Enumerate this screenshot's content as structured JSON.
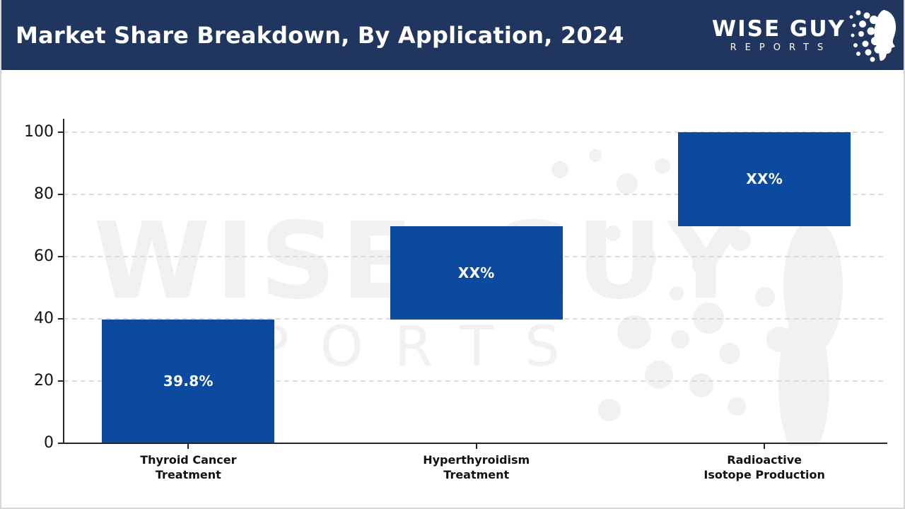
{
  "header": {
    "title": "Market Share Breakdown, By Application, 2024",
    "bg_color": "#21365f",
    "logo": {
      "line1": "WISE GUY",
      "line2": "REPORTS"
    }
  },
  "watermark": {
    "line1": "WISE GUY",
    "line2": "REPORTS",
    "color": "#f1f1f1"
  },
  "chart_data": {
    "type": "bar",
    "subtype": "waterfall-segments",
    "title": "Market Share Breakdown, By Application, 2024",
    "xlabel": "",
    "ylabel": "",
    "categories": [
      [
        "Thyroid Cancer",
        "Treatment"
      ],
      [
        "Hyperthyroidism",
        "Treatment"
      ],
      [
        "Radioactive",
        "Isotope Production"
      ]
    ],
    "segments": [
      {
        "from": 0,
        "to": 39.8,
        "label": "39.8%"
      },
      {
        "from": 39.8,
        "to": 69.8,
        "label": "XX%"
      },
      {
        "from": 69.8,
        "to": 100,
        "label": "XX%"
      }
    ],
    "ytick_labels": [
      "0",
      "20",
      "40",
      "60",
      "80",
      "100"
    ],
    "yticks": [
      0,
      20,
      40,
      60,
      80,
      100
    ],
    "ylim": [
      0,
      104
    ],
    "grid": "dashed-horizontal",
    "legend": "none",
    "bar_color": "#0b4a9f",
    "grid_color": "#dcdcdc",
    "axis_color": "#262626"
  }
}
